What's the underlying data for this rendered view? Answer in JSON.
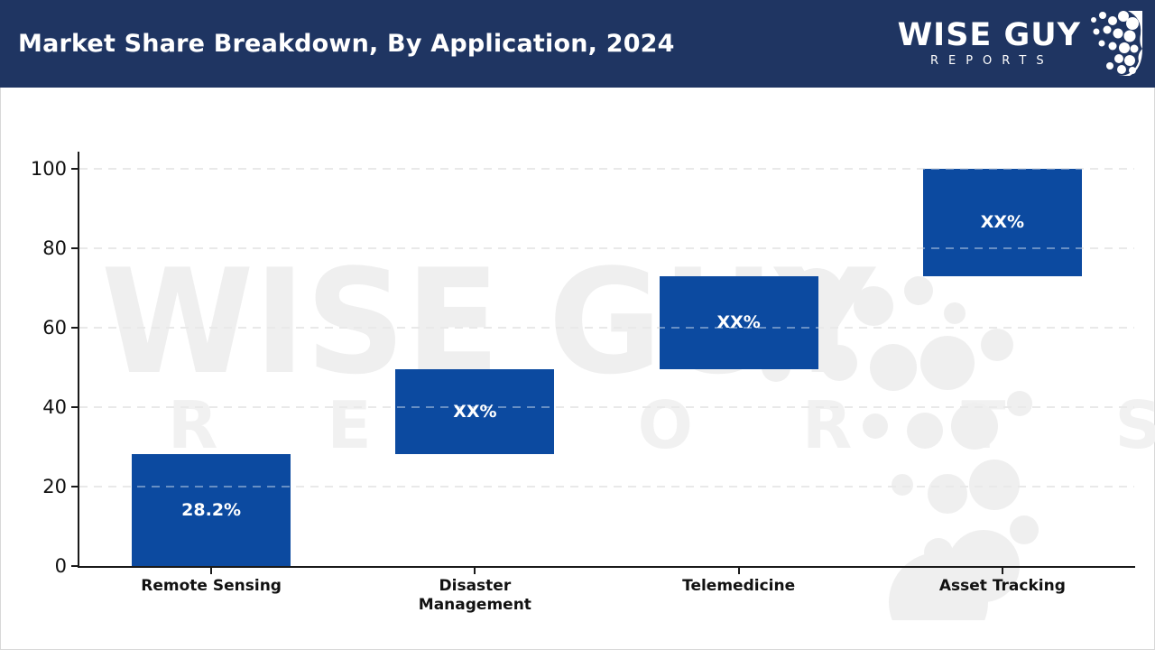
{
  "header": {
    "title": "Market Share Breakdown, By Application, 2024",
    "logo": {
      "line1": "WISE GUY",
      "line2": "REPORTS",
      "face_icon": "dotted-profile-face"
    }
  },
  "watermark": {
    "line1": "WISE GUY",
    "line2": "R E P O R T S",
    "motif": "dot-cluster-face"
  },
  "chart_data": {
    "type": "bar",
    "subtype": "waterfall",
    "title": "Market Share Breakdown, By Application, 2024",
    "categories": [
      "Remote Sensing",
      "Disaster Management",
      "Telemedicine",
      "Asset Tracking"
    ],
    "category_lines": [
      [
        "Remote Sensing"
      ],
      [
        "Disaster",
        "Management"
      ],
      [
        "Telemedicine"
      ],
      [
        "Asset Tracking"
      ]
    ],
    "segments": [
      {
        "category": "Remote Sensing",
        "start": 0,
        "end": 28.2,
        "label": "28.2%"
      },
      {
        "category": "Disaster Management",
        "start": 28.2,
        "end": 49.6,
        "label": "XX%"
      },
      {
        "category": "Telemedicine",
        "start": 49.6,
        "end": 73.0,
        "label": "XX%"
      },
      {
        "category": "Asset Tracking",
        "start": 73.0,
        "end": 100,
        "label": "XX%"
      }
    ],
    "yticks": [
      0,
      20,
      40,
      60,
      80,
      100
    ],
    "ylim": [
      0,
      104.3
    ],
    "xlabel": "",
    "ylabel": "",
    "grid": "horizontal-dashed",
    "legend": "none",
    "bar_color": "#0c4aa0",
    "bar_label_color": "#ffffff",
    "axis_color": "#1a1a1a",
    "grid_color": "#dcdcdc",
    "header_color": "#1f3562",
    "watermark_color": "#efefef"
  }
}
